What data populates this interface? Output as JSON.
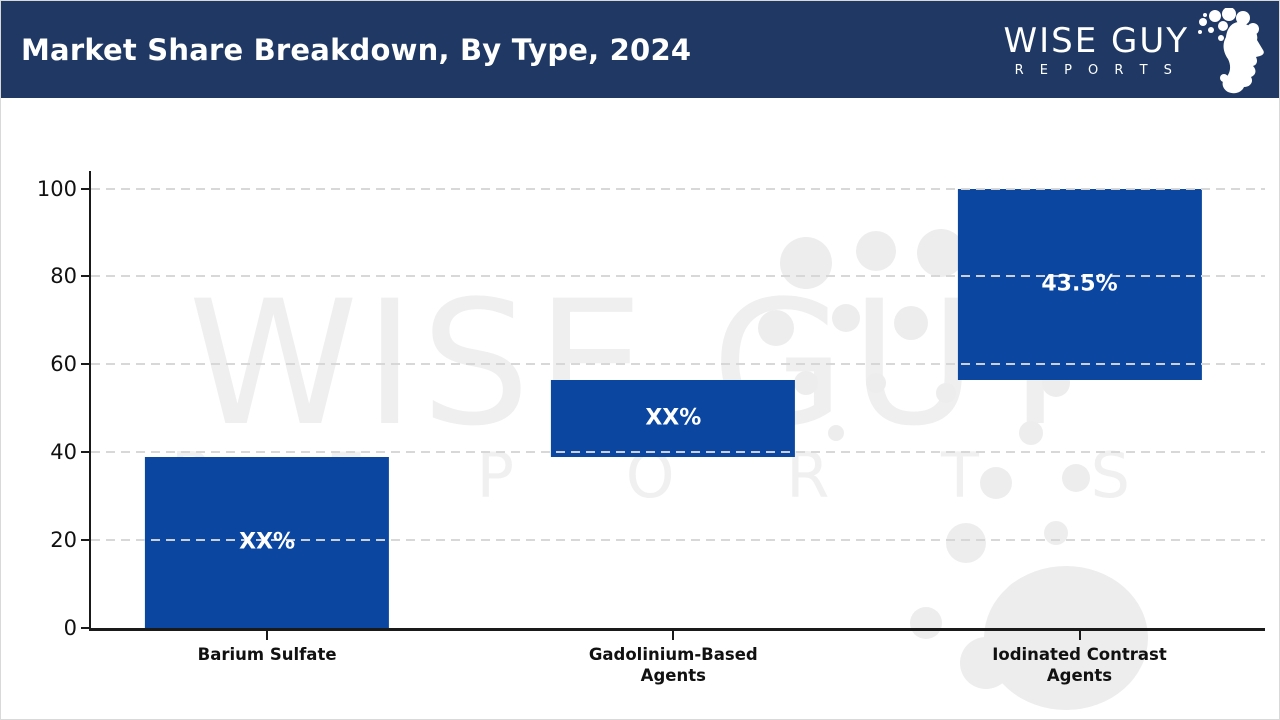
{
  "header": {
    "title": "Market Share Breakdown, By Type, 2024",
    "bg_color": "#1f3864",
    "logo": {
      "line1": "WISE GUY",
      "line2": "R E P O R T S"
    }
  },
  "watermark": {
    "line1": "WISE GUY",
    "line2": "R E P O R T S"
  },
  "chart_data": {
    "type": "bar",
    "variant": "waterfall",
    "title": "Market Share Breakdown, By Type, 2024",
    "xlabel": "",
    "ylabel": "",
    "categories": [
      "Barium Sulfate",
      "Gadolinium-Based\nAgents",
      "Iodinated Contrast\nAgents"
    ],
    "segments": [
      [
        0,
        39
      ],
      [
        39,
        56.5
      ],
      [
        56.5,
        100
      ]
    ],
    "values": [
      39,
      17.5,
      43.5
    ],
    "bar_labels": [
      "XX%",
      "XX%",
      "43.5%"
    ],
    "bar_color": "#0b47a1",
    "bar_label_color": "#ffffff",
    "yticks": [
      0,
      20,
      40,
      60,
      80,
      100
    ],
    "ylim": [
      0,
      104
    ],
    "grid": "horizontal-dashed-over-bars",
    "grid_color": "#d6d6d6",
    "legend": "none"
  }
}
